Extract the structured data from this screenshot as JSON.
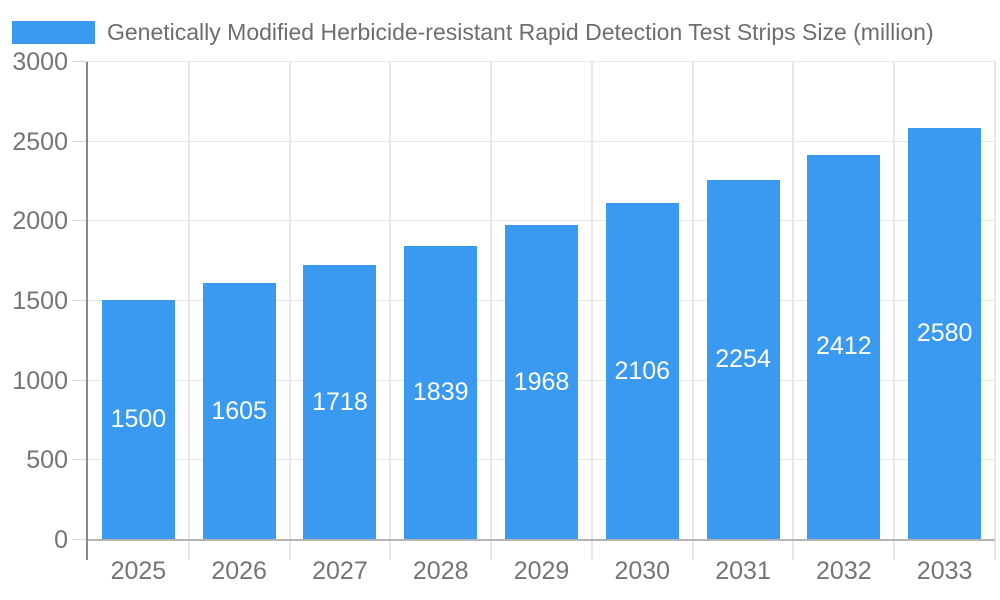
{
  "legend": {
    "label": "Genetically Modified Herbicide-resistant Rapid Detection Test Strips Size (million)"
  },
  "chart_data": {
    "type": "bar",
    "title": "Genetically Modified Herbicide-resistant Rapid Detection Test Strips Size (million)",
    "categories": [
      "2025",
      "2026",
      "2027",
      "2028",
      "2029",
      "2030",
      "2031",
      "2032",
      "2033"
    ],
    "values": [
      1500,
      1605,
      1718,
      1839,
      1968,
      2106,
      2254,
      2412,
      2580
    ],
    "xlabel": "",
    "ylabel": "",
    "ylim": [
      0,
      3000
    ],
    "yticks": [
      0,
      500,
      1000,
      1500,
      2000,
      2500,
      3000
    ],
    "grid": true,
    "legend_position": "top-left",
    "bar_label_position": "inside-center"
  },
  "colors": {
    "bar": "#3A99F0",
    "grid_line": "#E8E8E8",
    "y_axis_line": "#888888",
    "x_axis_line": "#B3B3B3",
    "tick_mark": "#D8D8D8",
    "tick_label": "#757575",
    "title_text": "#6E6E6E",
    "bar_label": "#FFFFFF",
    "background": "#FFFFFF"
  }
}
